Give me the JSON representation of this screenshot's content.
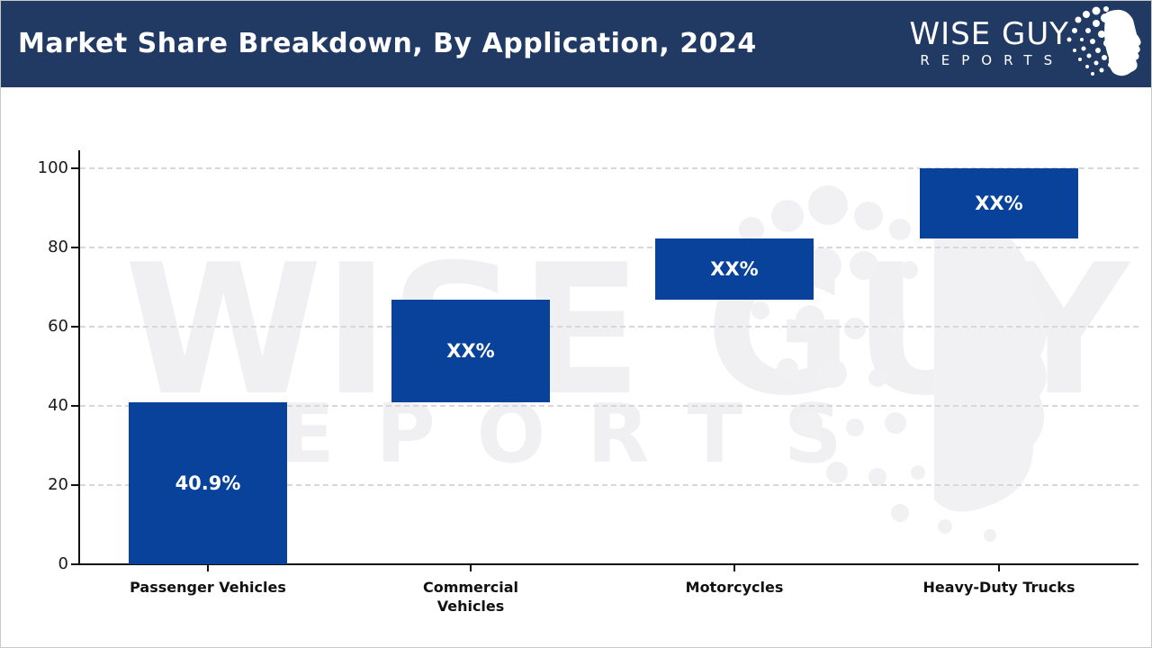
{
  "header": {
    "title": "Market Share Breakdown, By Application, 2024",
    "background_color": "#213a63"
  },
  "logo": {
    "line1": "WISE GUY",
    "line2": "REPORTS",
    "face_icon": "dotted-face-profile-icon"
  },
  "watermark": {
    "line1": "WISE GUY",
    "line2": "REPORTS"
  },
  "chart_data": {
    "type": "bar",
    "subtype": "floating-waterfall-segments",
    "title": "Market Share Breakdown, By Application, 2024",
    "categories": [
      "Passenger Vehicles",
      "Commercial\nVehicles",
      "Motorcycles",
      "Heavy-Duty Trucks"
    ],
    "segments": [
      {
        "category": "Passenger Vehicles",
        "start": 0,
        "end": 40.9,
        "label": "40.9%"
      },
      {
        "category": "Commercial Vehicles",
        "start": 40.9,
        "end": 66.9,
        "label": "XX%"
      },
      {
        "category": "Motorcycles",
        "start": 66.9,
        "end": 82.3,
        "label": "XX%"
      },
      {
        "category": "Heavy-Duty Trucks",
        "start": 82.3,
        "end": 100,
        "label": "XX%"
      }
    ],
    "ylim": [
      0,
      100
    ],
    "yticks": [
      0,
      20,
      40,
      60,
      80,
      100
    ],
    "xlabel": "",
    "ylabel": "",
    "grid": "horizontal-dashed",
    "legend": "none",
    "bar_color": "#09429a",
    "bar_label_color": "#ffffff",
    "axis_color": "#111111",
    "gridline_color": "#d8d8d8"
  }
}
